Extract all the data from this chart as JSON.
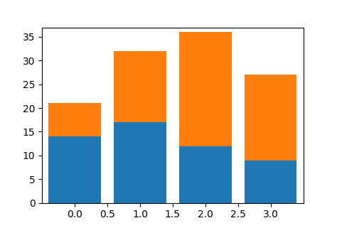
{
  "x": [
    0.0,
    1.0,
    2.0,
    3.0
  ],
  "blue_values": [
    14,
    17,
    12,
    9
  ],
  "orange_values": [
    7,
    15,
    24,
    18
  ],
  "blue_color": "#1f77b4",
  "orange_color": "#ff7f0e",
  "bar_width": 0.8,
  "ylim": [
    0,
    37
  ],
  "yticks": [
    0,
    5,
    10,
    15,
    20,
    25,
    30,
    35
  ],
  "xticks": [
    0.0,
    0.5,
    1.0,
    1.5,
    2.0,
    2.5,
    3.0
  ],
  "xlim": [
    -0.5,
    3.5
  ],
  "figsize": [
    4.74,
    3.21
  ],
  "dpi": 100
}
